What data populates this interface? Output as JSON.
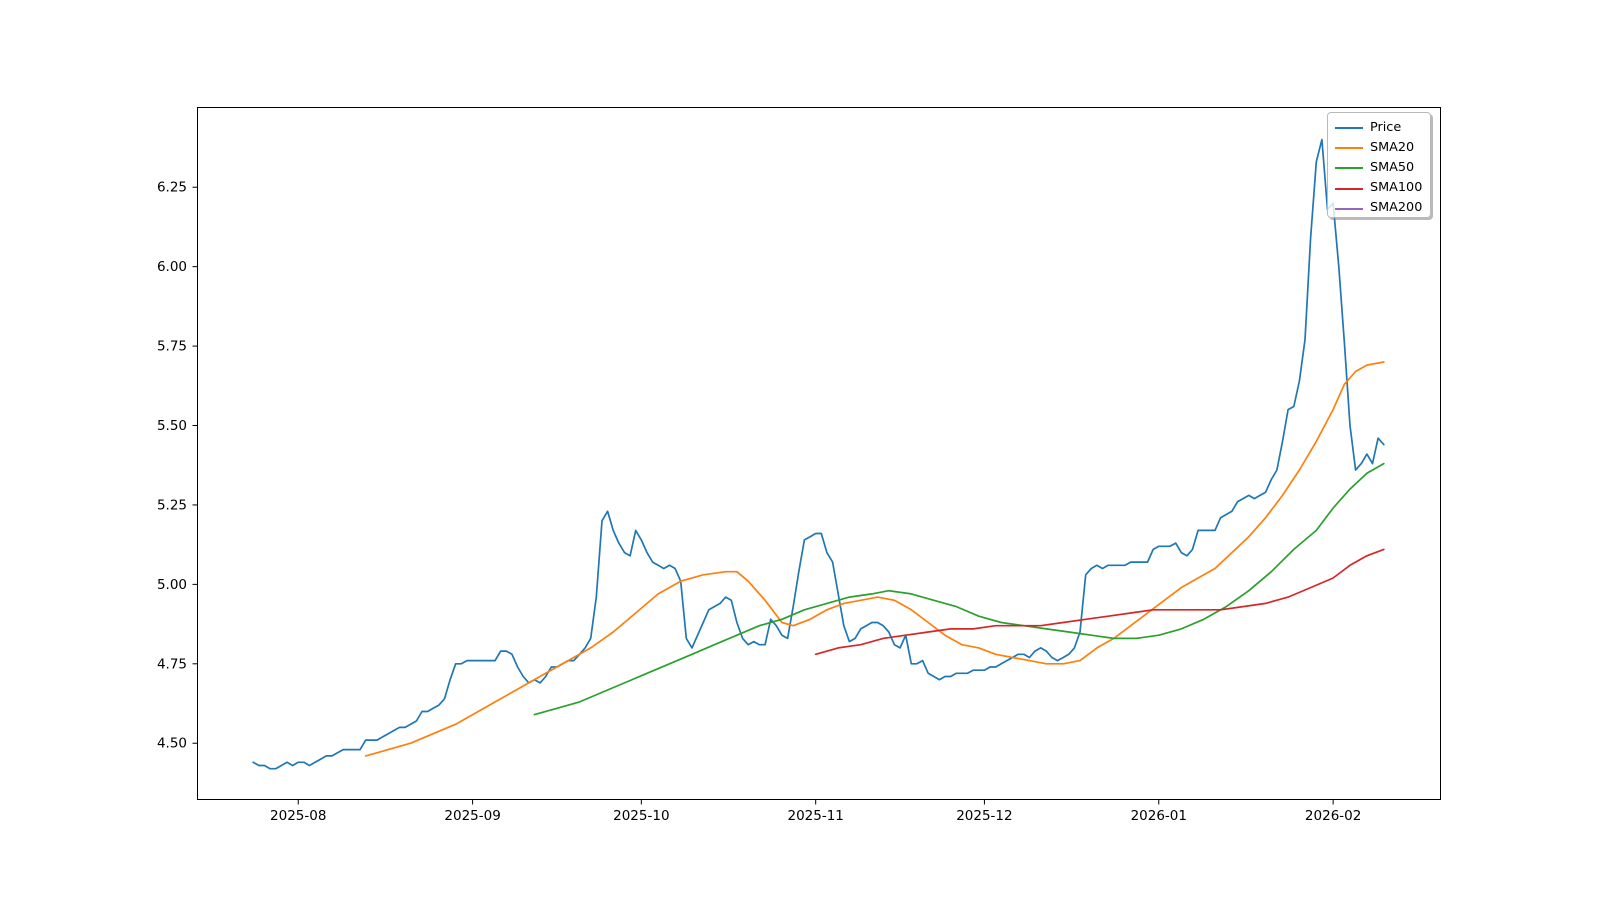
{
  "figure": {
    "background": "#ffffff",
    "axis_color": "#000000",
    "legend": {
      "entries": [
        {
          "label": "Price",
          "color": "#1f77b4"
        },
        {
          "label": "SMA20",
          "color": "#ff7f0e"
        },
        {
          "label": "SMA50",
          "color": "#2ca02c"
        },
        {
          "label": "SMA100",
          "color": "#d62728"
        },
        {
          "label": "SMA200",
          "color": "#9467bd"
        }
      ]
    },
    "x_ticks": [
      {
        "label": "2025-08",
        "date": "2025-08-01"
      },
      {
        "label": "2025-09",
        "date": "2025-09-01"
      },
      {
        "label": "2025-10",
        "date": "2025-10-01"
      },
      {
        "label": "2025-11",
        "date": "2025-11-01"
      },
      {
        "label": "2025-12",
        "date": "2025-12-01"
      },
      {
        "label": "2026-01",
        "date": "2026-01-01"
      },
      {
        "label": "2026-02",
        "date": "2026-02-01"
      }
    ],
    "y_ticks": [
      {
        "label": "4.50",
        "value": 4.5
      },
      {
        "label": "4.75",
        "value": 4.75
      },
      {
        "label": "5.00",
        "value": 5.0
      },
      {
        "label": "5.25",
        "value": 5.25
      },
      {
        "label": "5.50",
        "value": 5.5
      },
      {
        "label": "5.75",
        "value": 5.75
      },
      {
        "label": "6.00",
        "value": 6.0
      },
      {
        "label": "6.25",
        "value": 6.25
      }
    ]
  },
  "chart_data": {
    "type": "line",
    "title": "",
    "xlabel": "",
    "ylabel": "",
    "grid": false,
    "legend_position": "upper right",
    "xlim": [
      "2025-07-14",
      "2026-02-20"
    ],
    "ylim": [
      4.3245,
      6.5025
    ],
    "series": [
      {
        "name": "Price",
        "color": "#1f77b4",
        "start": "2025-07-24",
        "interval_days": 1,
        "values": [
          4.44,
          4.43,
          4.43,
          4.42,
          4.42,
          4.43,
          4.44,
          4.43,
          4.44,
          4.44,
          4.43,
          4.44,
          4.45,
          4.46,
          4.46,
          4.47,
          4.48,
          4.48,
          4.48,
          4.48,
          4.51,
          4.51,
          4.51,
          4.52,
          4.53,
          4.54,
          4.55,
          4.55,
          4.56,
          4.57,
          4.6,
          4.6,
          4.61,
          4.62,
          4.64,
          4.7,
          4.75,
          4.75,
          4.76,
          4.76,
          4.76,
          4.76,
          4.76,
          4.76,
          4.79,
          4.79,
          4.78,
          4.74,
          4.71,
          4.69,
          4.7,
          4.69,
          4.71,
          4.74,
          4.74,
          4.75,
          4.76,
          4.76,
          4.78,
          4.8,
          4.83,
          4.96,
          5.2,
          5.23,
          5.17,
          5.13,
          5.1,
          5.09,
          5.17,
          5.14,
          5.1,
          5.07,
          5.06,
          5.05,
          5.06,
          5.05,
          5.01,
          4.83,
          4.8,
          4.84,
          4.88,
          4.92,
          4.93,
          4.94,
          4.96,
          4.95,
          4.88,
          4.83,
          4.81,
          4.82,
          4.81,
          4.81,
          4.89,
          4.87,
          4.84,
          4.83,
          4.93,
          5.04,
          5.14,
          5.15,
          5.16,
          5.16,
          5.1,
          5.07,
          4.97,
          4.87,
          4.82,
          4.83,
          4.86,
          4.87,
          4.88,
          4.88,
          4.87,
          4.85,
          4.81,
          4.8,
          4.84,
          4.75,
          4.75,
          4.76,
          4.72,
          4.71,
          4.7,
          4.71,
          4.71,
          4.72,
          4.72,
          4.72,
          4.73,
          4.73,
          4.73,
          4.74,
          4.74,
          4.75,
          4.76,
          4.77,
          4.78,
          4.78,
          4.77,
          4.79,
          4.8,
          4.79,
          4.77,
          4.76,
          4.77,
          4.78,
          4.8,
          4.85,
          5.03,
          5.05,
          5.06,
          5.05,
          5.06,
          5.06,
          5.06,
          5.06,
          5.07,
          5.07,
          5.07,
          5.07,
          5.11,
          5.12,
          5.12,
          5.12,
          5.13,
          5.1,
          5.09,
          5.11,
          5.17,
          5.17,
          5.17,
          5.17,
          5.21,
          5.22,
          5.23,
          5.26,
          5.27,
          5.28,
          5.27,
          5.28,
          5.29,
          5.33,
          5.36,
          5.45,
          5.55,
          5.56,
          5.64,
          5.77,
          6.09,
          6.33,
          6.4,
          6.18,
          6.2,
          6.0,
          5.76,
          5.5,
          5.36,
          5.38,
          5.41,
          5.38,
          5.46,
          5.44
        ]
      },
      {
        "name": "SMA20",
        "color": "#ff7f0e",
        "points": [
          [
            "2025-08-13",
            4.46
          ],
          [
            "2025-08-17",
            4.48
          ],
          [
            "2025-08-21",
            4.5
          ],
          [
            "2025-08-25",
            4.53
          ],
          [
            "2025-08-29",
            4.56
          ],
          [
            "2025-09-02",
            4.6
          ],
          [
            "2025-09-06",
            4.64
          ],
          [
            "2025-09-10",
            4.68
          ],
          [
            "2025-09-14",
            4.72
          ],
          [
            "2025-09-18",
            4.76
          ],
          [
            "2025-09-22",
            4.8
          ],
          [
            "2025-09-26",
            4.85
          ],
          [
            "2025-09-30",
            4.91
          ],
          [
            "2025-10-04",
            4.97
          ],
          [
            "2025-10-08",
            5.01
          ],
          [
            "2025-10-12",
            5.03
          ],
          [
            "2025-10-16",
            5.04
          ],
          [
            "2025-10-18",
            5.04
          ],
          [
            "2025-10-20",
            5.01
          ],
          [
            "2025-10-23",
            4.95
          ],
          [
            "2025-10-26",
            4.88
          ],
          [
            "2025-10-28",
            4.87
          ],
          [
            "2025-10-31",
            4.89
          ],
          [
            "2025-11-03",
            4.92
          ],
          [
            "2025-11-06",
            4.94
          ],
          [
            "2025-11-09",
            4.95
          ],
          [
            "2025-11-12",
            4.96
          ],
          [
            "2025-11-15",
            4.95
          ],
          [
            "2025-11-18",
            4.92
          ],
          [
            "2025-11-21",
            4.88
          ],
          [
            "2025-11-24",
            4.84
          ],
          [
            "2025-11-27",
            4.81
          ],
          [
            "2025-11-30",
            4.8
          ],
          [
            "2025-12-03",
            4.78
          ],
          [
            "2025-12-06",
            4.77
          ],
          [
            "2025-12-09",
            4.76
          ],
          [
            "2025-12-12",
            4.75
          ],
          [
            "2025-12-15",
            4.75
          ],
          [
            "2025-12-18",
            4.76
          ],
          [
            "2025-12-21",
            4.8
          ],
          [
            "2025-12-24",
            4.83
          ],
          [
            "2025-12-27",
            4.87
          ],
          [
            "2025-12-30",
            4.91
          ],
          [
            "2026-01-02",
            4.95
          ],
          [
            "2026-01-05",
            4.99
          ],
          [
            "2026-01-08",
            5.02
          ],
          [
            "2026-01-11",
            5.05
          ],
          [
            "2026-01-14",
            5.1
          ],
          [
            "2026-01-17",
            5.15
          ],
          [
            "2026-01-20",
            5.21
          ],
          [
            "2026-01-23",
            5.28
          ],
          [
            "2026-01-26",
            5.36
          ],
          [
            "2026-01-29",
            5.45
          ],
          [
            "2026-02-01",
            5.55
          ],
          [
            "2026-02-03",
            5.63
          ],
          [
            "2026-02-05",
            5.67
          ],
          [
            "2026-02-07",
            5.69
          ],
          [
            "2026-02-10",
            5.7
          ]
        ]
      },
      {
        "name": "SMA50",
        "color": "#2ca02c",
        "points": [
          [
            "2025-09-12",
            4.59
          ],
          [
            "2025-09-16",
            4.61
          ],
          [
            "2025-09-20",
            4.63
          ],
          [
            "2025-09-24",
            4.66
          ],
          [
            "2025-09-28",
            4.69
          ],
          [
            "2025-10-02",
            4.72
          ],
          [
            "2025-10-06",
            4.75
          ],
          [
            "2025-10-10",
            4.78
          ],
          [
            "2025-10-14",
            4.81
          ],
          [
            "2025-10-18",
            4.84
          ],
          [
            "2025-10-22",
            4.87
          ],
          [
            "2025-10-26",
            4.89
          ],
          [
            "2025-10-30",
            4.92
          ],
          [
            "2025-11-03",
            4.94
          ],
          [
            "2025-11-07",
            4.96
          ],
          [
            "2025-11-11",
            4.97
          ],
          [
            "2025-11-14",
            4.98
          ],
          [
            "2025-11-18",
            4.97
          ],
          [
            "2025-11-22",
            4.95
          ],
          [
            "2025-11-26",
            4.93
          ],
          [
            "2025-11-30",
            4.9
          ],
          [
            "2025-12-04",
            4.88
          ],
          [
            "2025-12-08",
            4.87
          ],
          [
            "2025-12-12",
            4.86
          ],
          [
            "2025-12-16",
            4.85
          ],
          [
            "2025-12-20",
            4.84
          ],
          [
            "2025-12-24",
            4.83
          ],
          [
            "2025-12-28",
            4.83
          ],
          [
            "2026-01-01",
            4.84
          ],
          [
            "2026-01-05",
            4.86
          ],
          [
            "2026-01-09",
            4.89
          ],
          [
            "2026-01-13",
            4.93
          ],
          [
            "2026-01-17",
            4.98
          ],
          [
            "2026-01-21",
            5.04
          ],
          [
            "2026-01-25",
            5.11
          ],
          [
            "2026-01-29",
            5.17
          ],
          [
            "2026-02-01",
            5.24
          ],
          [
            "2026-02-04",
            5.3
          ],
          [
            "2026-02-07",
            5.35
          ],
          [
            "2026-02-10",
            5.38
          ]
        ]
      },
      {
        "name": "SMA100",
        "color": "#d62728",
        "points": [
          [
            "2025-11-01",
            4.78
          ],
          [
            "2025-11-05",
            4.8
          ],
          [
            "2025-11-09",
            4.81
          ],
          [
            "2025-11-13",
            4.83
          ],
          [
            "2025-11-17",
            4.84
          ],
          [
            "2025-11-21",
            4.85
          ],
          [
            "2025-11-25",
            4.86
          ],
          [
            "2025-11-29",
            4.86
          ],
          [
            "2025-12-03",
            4.87
          ],
          [
            "2025-12-07",
            4.87
          ],
          [
            "2025-12-11",
            4.87
          ],
          [
            "2025-12-15",
            4.88
          ],
          [
            "2025-12-19",
            4.89
          ],
          [
            "2025-12-23",
            4.9
          ],
          [
            "2025-12-27",
            4.91
          ],
          [
            "2025-12-31",
            4.92
          ],
          [
            "2026-01-04",
            4.92
          ],
          [
            "2026-01-08",
            4.92
          ],
          [
            "2026-01-12",
            4.92
          ],
          [
            "2026-01-16",
            4.93
          ],
          [
            "2026-01-20",
            4.94
          ],
          [
            "2026-01-24",
            4.96
          ],
          [
            "2026-01-28",
            4.99
          ],
          [
            "2026-02-01",
            5.02
          ],
          [
            "2026-02-04",
            5.06
          ],
          [
            "2026-02-07",
            5.09
          ],
          [
            "2026-02-10",
            5.11
          ]
        ]
      },
      {
        "name": "SMA200",
        "color": "#9467bd",
        "points": []
      }
    ]
  }
}
